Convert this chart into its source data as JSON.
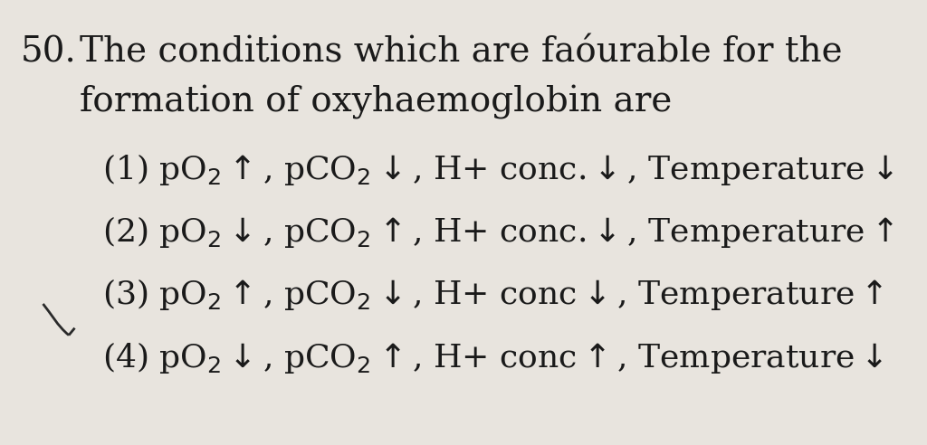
{
  "bg_color": "#d8d0c4",
  "text_color": "#1a1a1a",
  "question_number": "50.",
  "question_line1": "The conditions which are faóurable for the",
  "question_line2": "formation of oxyhaemoglobin are",
  "options": [
    "(1) pO$_2$↑, pCO$_2$↓, H+ conc.↓, Temperature↓",
    "(2) pO$_2$↓, pCO$_2$↑, H+ conc.↓, Temperature↑",
    "(3) pO$_2$↑, pCO$_2$↓, H+ conc↓, Temperature↑",
    "(4) pO$_2$↓, pCO$_2$↑, H+ conc↑, Temperature↓"
  ],
  "fig_width": 10.24,
  "fig_height": 4.92,
  "dpi": 100
}
